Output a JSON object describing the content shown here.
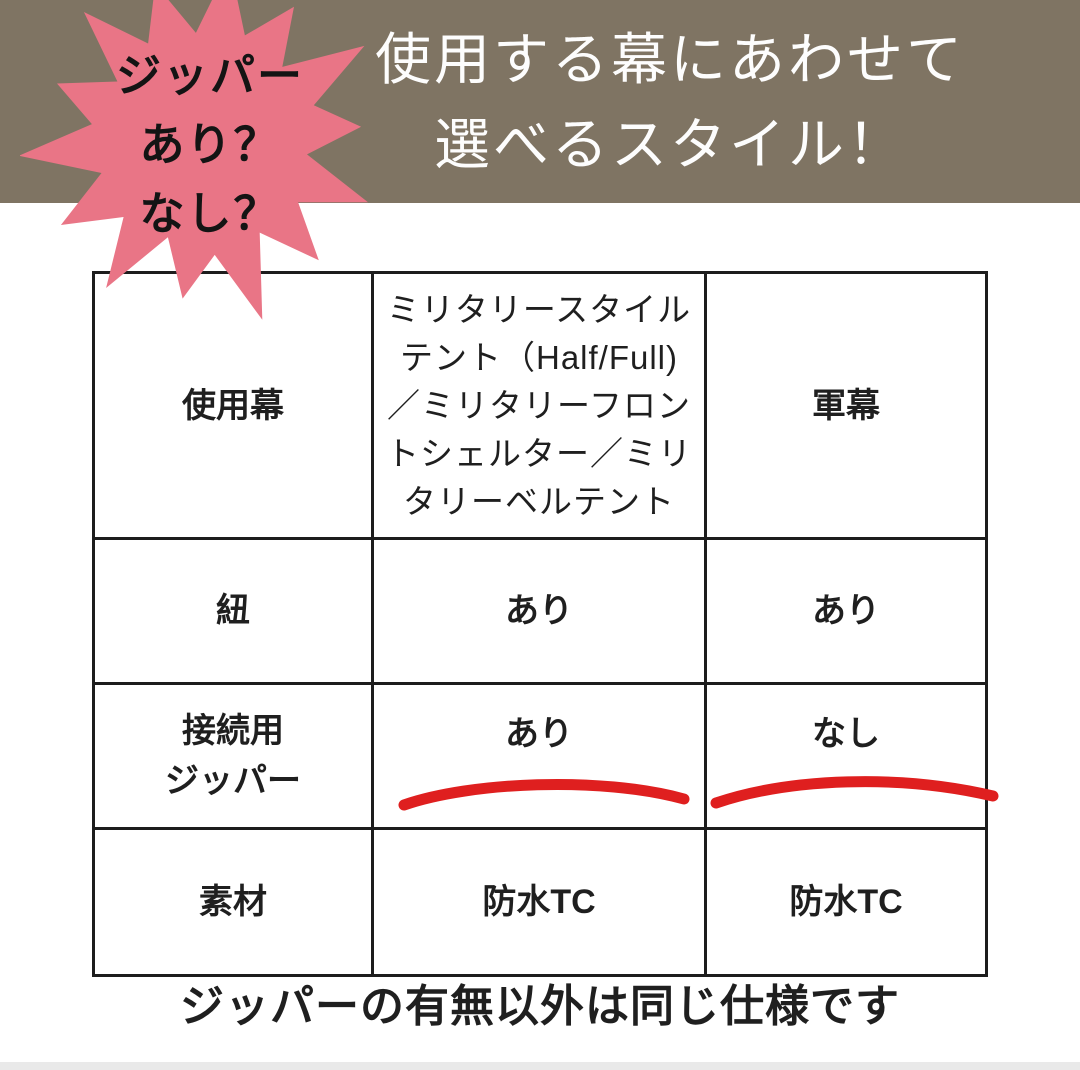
{
  "colors": {
    "band": "#7f7463",
    "badge": "#e97586",
    "accent_red": "#df1f1f",
    "border": "#1d1d1d",
    "text": "#1f1f1f",
    "header_text": "#fdfdfd",
    "bottom_strip": "#e9e9e9"
  },
  "header": {
    "line1": "使用する幕にあわせて",
    "line2": "選べるスタイル！"
  },
  "badge": {
    "text": "ジッパー\nあり？\nなし？"
  },
  "table": {
    "rows": [
      {
        "cells": [
          {
            "text": "使用幕"
          },
          {
            "text": "ミリタリースタイル\nテント（Half/Full)\n／ミリタリーフロン\nトシェルター／ミリ\nタリーベルテント"
          },
          {
            "text": "軍幕"
          }
        ]
      },
      {
        "cells": [
          {
            "text": "紐"
          },
          {
            "text": "あり"
          },
          {
            "text": "あり"
          }
        ]
      },
      {
        "cells": [
          {
            "text": "接続用\nジッパー"
          },
          {
            "text": "あり"
          },
          {
            "text": "なし"
          }
        ]
      },
      {
        "cells": [
          {
            "text": "素材"
          },
          {
            "text": "防水TC"
          },
          {
            "text": "防水TC"
          }
        ]
      }
    ]
  },
  "footer": {
    "note": "ジッパーの有無以外は同じ仕様です"
  }
}
